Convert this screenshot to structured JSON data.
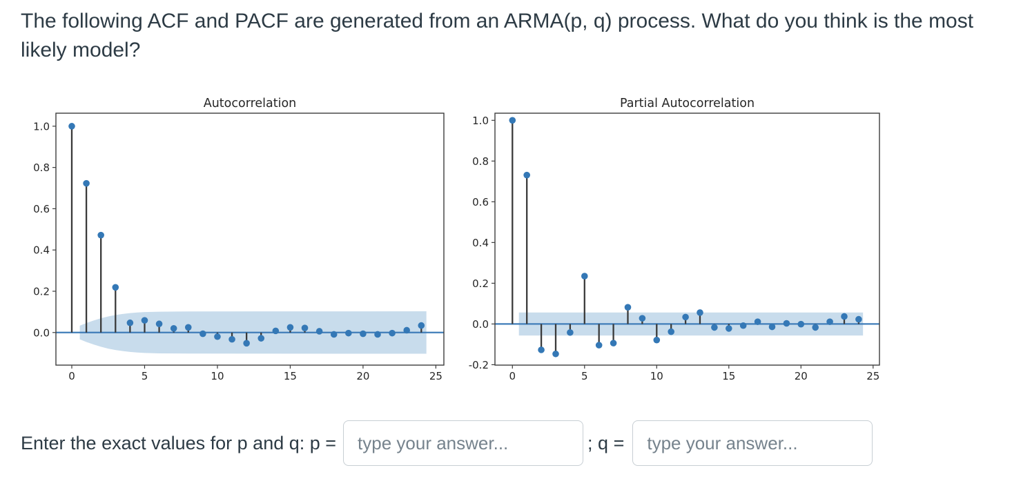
{
  "question": {
    "title": "The following ACF and PACF are generated from an ARMA(p, q) process. What do you think is the most likely model?",
    "prompt_prefix": "Enter the exact values for p and q: p =",
    "prompt_separator": "; q =",
    "p_value": "",
    "q_value": "",
    "p_placeholder": "type your answer...",
    "q_placeholder": "type your answer..."
  },
  "colors": {
    "marker": "#3478b6",
    "stem": "#3a3a3a",
    "zero_line": "#3f7db9",
    "band": "#c8dcec",
    "frame": "#3c3c3c",
    "tick_text": "#262626",
    "heading_text": "#2d3b45",
    "input_border": "#c7ced3",
    "placeholder_text": "#76838d"
  },
  "chart_data": [
    {
      "type": "stem",
      "title": "Autocorrelation",
      "xlabel": "",
      "ylabel": "",
      "grid": false,
      "legend": null,
      "zero_line": true,
      "x": [
        0,
        1,
        2,
        3,
        4,
        5,
        6,
        7,
        8,
        9,
        10,
        11,
        12,
        13,
        14,
        15,
        16,
        17,
        18,
        19,
        20,
        21,
        22,
        23,
        24
      ],
      "values": [
        1.0,
        0.723,
        0.472,
        0.219,
        0.047,
        0.059,
        0.042,
        0.02,
        0.025,
        -0.006,
        -0.02,
        -0.033,
        -0.052,
        -0.028,
        0.008,
        0.025,
        0.022,
        0.006,
        -0.009,
        -0.003,
        -0.006,
        -0.009,
        -0.003,
        0.011,
        0.034
      ],
      "conf_band": [
        [
          0.55,
          0.033
        ],
        [
          1,
          0.046
        ],
        [
          1.5,
          0.058
        ],
        [
          2,
          0.069
        ],
        [
          2.5,
          0.078
        ],
        [
          3,
          0.085
        ],
        [
          3.5,
          0.09
        ],
        [
          4,
          0.094
        ],
        [
          4.5,
          0.097
        ],
        [
          5,
          0.099
        ],
        [
          6,
          0.101
        ],
        [
          8,
          0.102
        ],
        [
          24.35,
          0.103
        ]
      ],
      "xlim": [
        -1.09,
        25.55
      ],
      "ylim": [
        -0.158,
        1.063
      ],
      "xticks": [
        0,
        5,
        10,
        15,
        20,
        25
      ],
      "xtick_labels": [
        "0",
        "5",
        "10",
        "15",
        "20",
        "25"
      ],
      "yticks": [
        0.0,
        0.2,
        0.4,
        0.6,
        0.8,
        1.0
      ],
      "ytick_labels": [
        "0.0",
        "0.2",
        "0.4",
        "0.6",
        "0.8",
        "1.0"
      ]
    },
    {
      "type": "stem",
      "title": "Partial Autocorrelation",
      "xlabel": "",
      "ylabel": "",
      "grid": false,
      "legend": null,
      "zero_line": true,
      "x": [
        0,
        1,
        2,
        3,
        4,
        5,
        6,
        7,
        8,
        9,
        10,
        11,
        12,
        13,
        14,
        15,
        16,
        17,
        18,
        19,
        20,
        21,
        22,
        23,
        24
      ],
      "values": [
        1.0,
        0.731,
        -0.127,
        -0.147,
        -0.042,
        0.235,
        -0.104,
        -0.094,
        0.082,
        0.028,
        -0.079,
        -0.038,
        0.034,
        0.056,
        -0.017,
        -0.022,
        -0.008,
        0.011,
        -0.014,
        0.003,
        -0.001,
        -0.017,
        0.011,
        0.037,
        0.023
      ],
      "conf_band": [
        [
          0.45,
          0.0565
        ],
        [
          24.3,
          0.0565
        ]
      ],
      "xlim": [
        -1.21,
        25.44
      ],
      "ylim": [
        -0.202,
        1.035
      ],
      "xticks": [
        0,
        5,
        10,
        15,
        20,
        25
      ],
      "xtick_labels": [
        "0",
        "5",
        "10",
        "15",
        "20",
        "25"
      ],
      "yticks": [
        -0.2,
        0.0,
        0.2,
        0.4,
        0.6,
        0.8,
        1.0
      ],
      "ytick_labels": [
        "-0.2",
        "0.0",
        "0.2",
        "0.4",
        "0.6",
        "0.8",
        "1.0"
      ]
    }
  ]
}
